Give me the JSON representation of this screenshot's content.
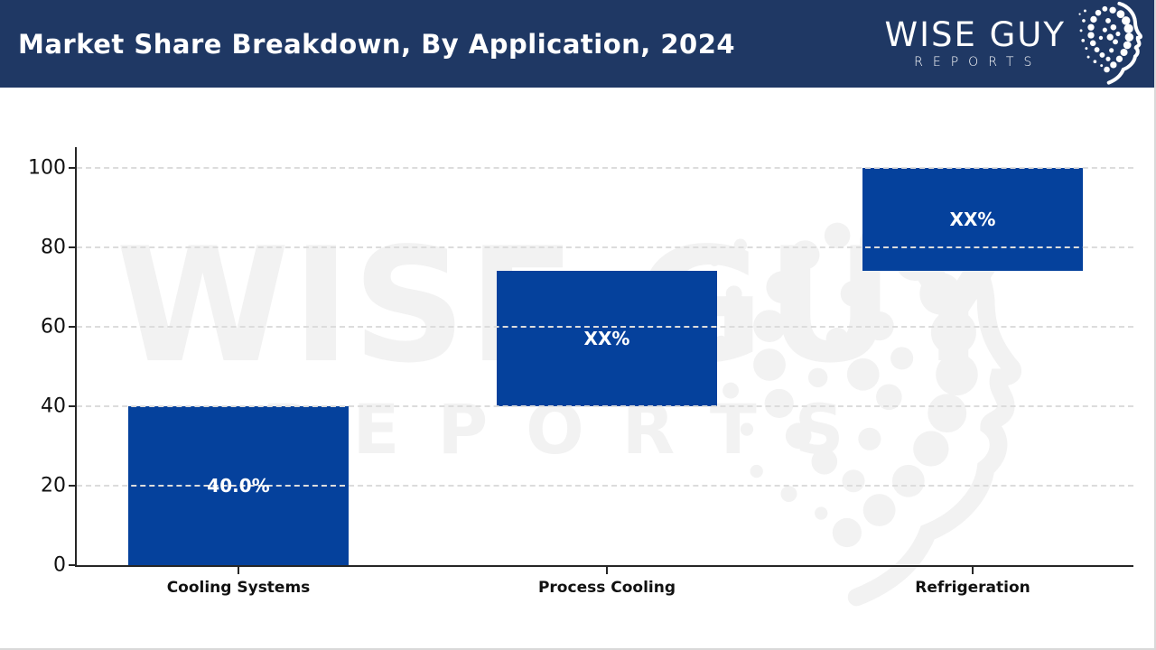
{
  "header": {
    "title": "Market Share Breakdown, By Application, 2024",
    "logo": {
      "line1": "WISE GUY",
      "line2": "REPORTS"
    }
  },
  "watermark": {
    "line1": "WISE GUY",
    "line2": "REPORTS"
  },
  "chart_data": {
    "type": "bar",
    "variant": "floating-waterfall",
    "title": "Market Share Breakdown, By Application, 2024",
    "categories": [
      "Cooling Systems",
      "Process Cooling",
      "Refrigeration"
    ],
    "series": [
      {
        "name": "Market Share",
        "segments": [
          {
            "category": "Cooling Systems",
            "start": 0,
            "end": 40,
            "label": "40.0%"
          },
          {
            "category": "Process Cooling",
            "start": 40,
            "end": 74,
            "label": "XX%"
          },
          {
            "category": "Refrigeration",
            "start": 74,
            "end": 100,
            "label": "XX%"
          }
        ]
      }
    ],
    "xlabel": "",
    "ylabel": "",
    "ylim": [
      0,
      100
    ],
    "yticks": [
      0,
      20,
      40,
      60,
      80,
      100
    ],
    "grid": "horizontal-dashed",
    "legend": "none"
  },
  "colors": {
    "header_bg": "#1f3864",
    "bar": "#05419c",
    "gridline": "#dcdcdc",
    "axis": "#262626",
    "watermark": "#f2f2f2"
  }
}
